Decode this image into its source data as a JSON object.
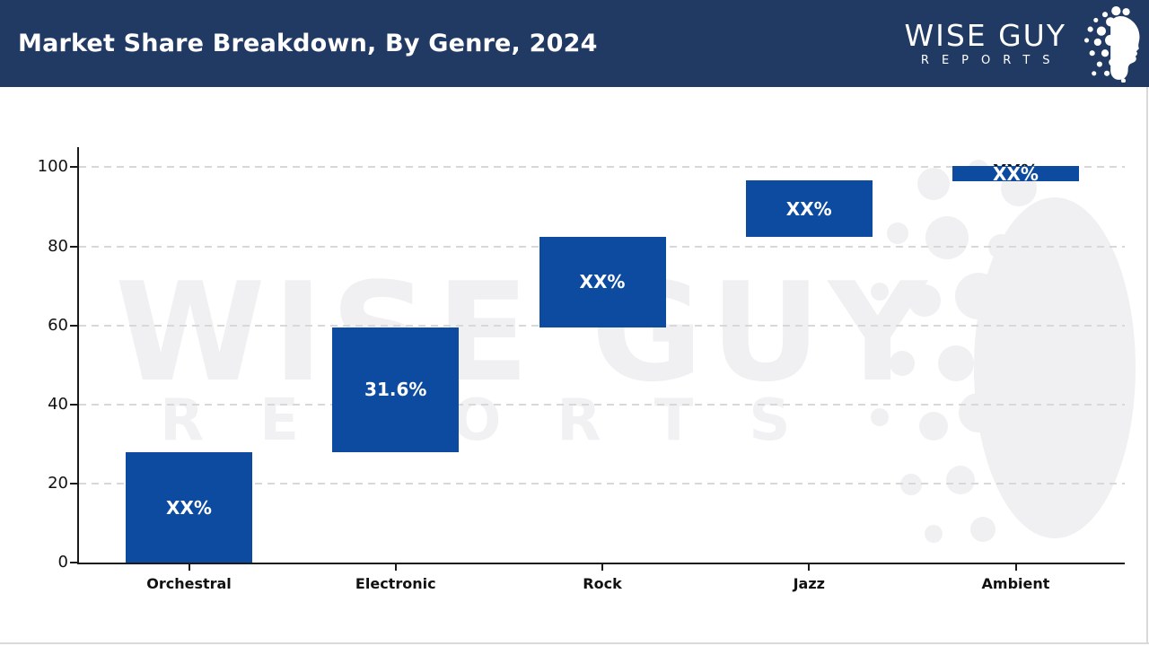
{
  "header": {
    "title": "Market Share Breakdown, By Genre, 2024",
    "logo": {
      "line1": "WISE GUY",
      "line2": "REPORTS"
    }
  },
  "watermark": {
    "line1": "WISE GUY",
    "line2": "REPORTS"
  },
  "chart_data": {
    "type": "bar",
    "subtype": "waterfall",
    "title": "Market Share Breakdown, By Genre, 2024",
    "categories": [
      "Orchestral",
      "Electronic",
      "Rock",
      "Jazz",
      "Ambient"
    ],
    "bars": [
      {
        "category": "Orchestral",
        "start": 0,
        "end": 27.9,
        "label": "XX%"
      },
      {
        "category": "Electronic",
        "start": 27.9,
        "end": 59.5,
        "label": "31.6%"
      },
      {
        "category": "Rock",
        "start": 59.5,
        "end": 82.4,
        "label": "XX%"
      },
      {
        "category": "Jazz",
        "start": 82.3,
        "end": 96.7,
        "label": "XX%"
      },
      {
        "category": "Ambient",
        "start": 96.4,
        "end": 100.3,
        "label": "XX%"
      }
    ],
    "yticks": [
      0,
      20,
      40,
      60,
      80,
      100
    ],
    "ylim": [
      0,
      105
    ],
    "xlabel": "",
    "ylabel": "",
    "grid": "horizontal-dashed",
    "legend": "none",
    "colors": {
      "bar": "#0c4ba0",
      "bar_label": "#ffffff",
      "axis": "#1a1a1a",
      "grid": "#d8d8d8",
      "header_bg": "#213a63",
      "header_text": "#ffffff",
      "watermark": "#f0f0f3"
    }
  }
}
